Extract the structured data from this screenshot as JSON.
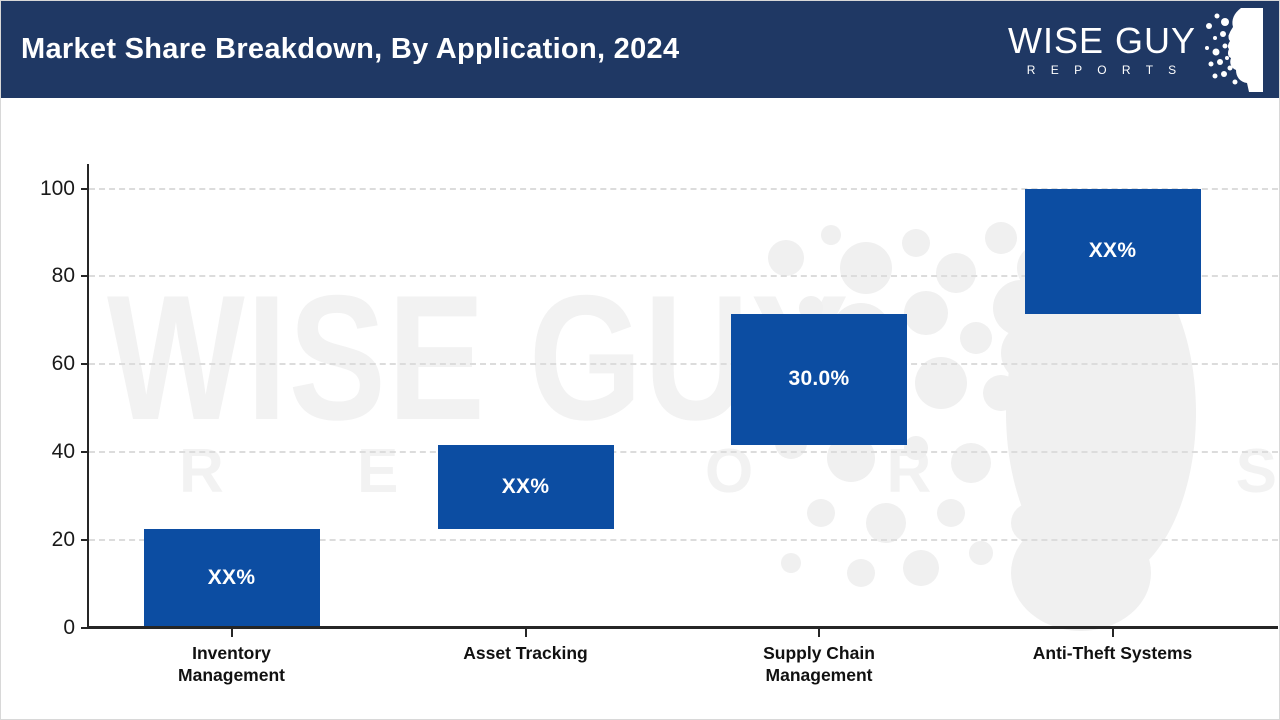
{
  "header": {
    "title": "Market Share Breakdown, By Application, 2024",
    "logo": {
      "wordmark": "WISE GUY",
      "subtext": "R E P O R T S"
    }
  },
  "watermark": {
    "wordmark": "WISE GUY",
    "subtext": "R E P O R T S"
  },
  "chart_data": {
    "type": "bar",
    "subtype": "floating-waterfall",
    "title": "Market Share Breakdown, By Application, 2024",
    "categories": [
      "Inventory Management",
      "Asset Tracking",
      "Supply Chain Management",
      "Anti-Theft Systems"
    ],
    "tick_labels": [
      "Inventory\nManagement",
      "Asset Tracking",
      "Supply Chain\nManagement",
      "Anti-Theft Systems"
    ],
    "segments": [
      {
        "category": "Inventory Management",
        "start": 0,
        "end": 22.5,
        "value_label": "XX%"
      },
      {
        "category": "Asset Tracking",
        "start": 22.5,
        "end": 41.5,
        "value_label": "XX%"
      },
      {
        "category": "Supply Chain Management",
        "start": 41.5,
        "end": 71.5,
        "value_label": "30.0%"
      },
      {
        "category": "Anti-Theft Systems",
        "start": 71.5,
        "end": 100,
        "value_label": "XX%"
      }
    ],
    "yticks": [
      0,
      20,
      40,
      60,
      80,
      100
    ],
    "ylim": [
      0,
      105
    ],
    "xlabel": "",
    "ylabel": "",
    "grid": "horizontal dashed",
    "legend_position": "none",
    "colors": {
      "bar": "#0c4da2",
      "bar_label": "#ffffff",
      "axis": "#262626",
      "grid": "#dcdcdc",
      "header_bg": "#1f3864",
      "watermark": "#f2f2f2"
    }
  }
}
